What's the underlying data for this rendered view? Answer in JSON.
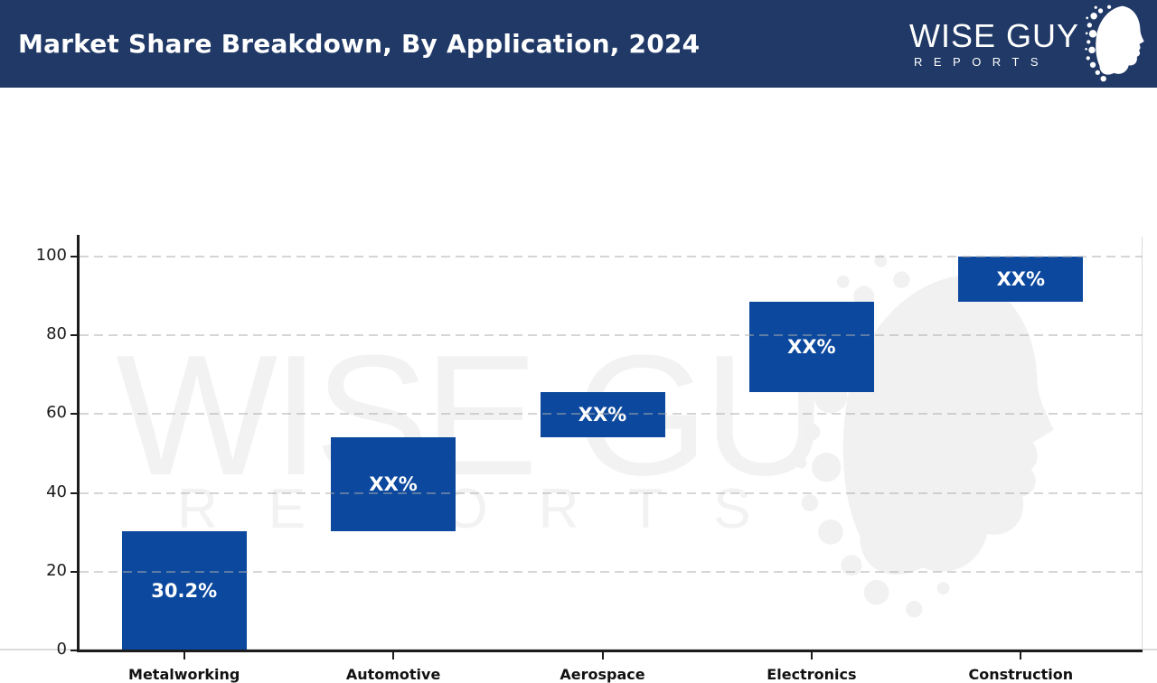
{
  "header": {
    "title": "Market Share Breakdown, By Application, 2024",
    "logo": {
      "line1": "WISE GUY",
      "line2": "REPORTS"
    }
  },
  "watermark": {
    "line1": "WISE GUY",
    "line2": "REPORTS"
  },
  "colors": {
    "header_bg": "#203966",
    "bar": "#0c499e",
    "axis": "#1c1c1c",
    "grid": "#acacac",
    "watermark": "#f2f2f2",
    "title_text": "#ffffff",
    "bar_label_text": "#ffffff"
  },
  "chart_data": {
    "type": "bar",
    "subtype": "waterfall-floating-bars",
    "title": "Market Share Breakdown, By Application, 2024",
    "categories": [
      "Metalworking",
      "Automotive",
      "Aerospace",
      "Electronics",
      "Construction"
    ],
    "segments": [
      {
        "category": "Metalworking",
        "start": 0,
        "end": 30.2,
        "label": "30.2%"
      },
      {
        "category": "Automotive",
        "start": 30.2,
        "end": 54,
        "label": "XX%"
      },
      {
        "category": "Aerospace",
        "start": 54,
        "end": 65.5,
        "label": "XX%"
      },
      {
        "category": "Electronics",
        "start": 65.5,
        "end": 88.5,
        "label": "XX%"
      },
      {
        "category": "Construction",
        "start": 88.5,
        "end": 100,
        "label": "XX%"
      }
    ],
    "xlabel": "",
    "ylabel": "",
    "yticks": [
      0,
      20,
      40,
      60,
      80,
      100
    ],
    "ylim": [
      0,
      105
    ],
    "grid": "dashed-horizontal",
    "legend": false,
    "bar_color": "#0c499e"
  }
}
